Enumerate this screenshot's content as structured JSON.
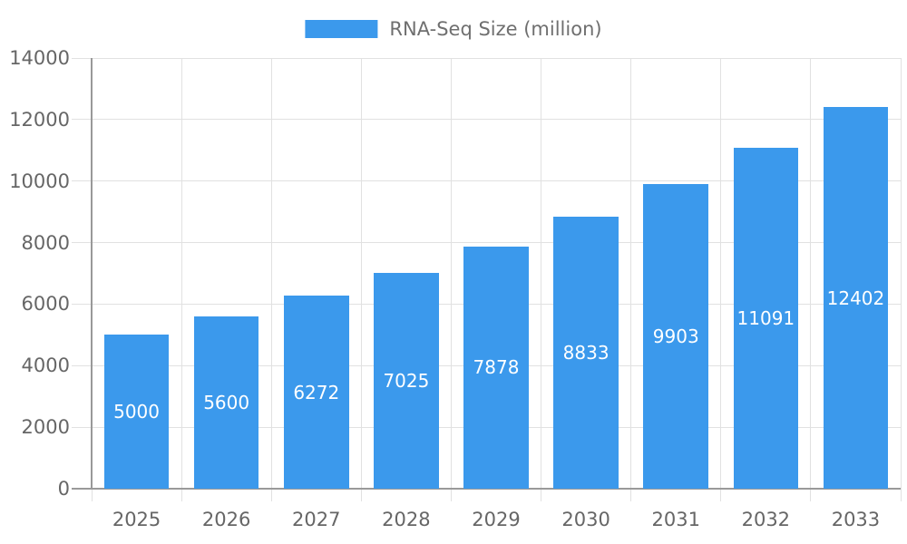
{
  "chart_data": {
    "type": "bar",
    "categories": [
      "2025",
      "2026",
      "2027",
      "2028",
      "2029",
      "2030",
      "2031",
      "2032",
      "2033"
    ],
    "values": [
      5000,
      5600,
      6272,
      7025,
      7878,
      8833,
      9903,
      11091,
      12402
    ],
    "series_name": "RNA-Seq Size (million)",
    "title": "",
    "xlabel": "",
    "ylabel": "",
    "ylim": [
      0,
      14000
    ],
    "yticks": [
      0,
      2000,
      4000,
      6000,
      8000,
      10000,
      12000,
      14000
    ],
    "grid": true,
    "legend_position": "top-center",
    "value_labels": "inside-center",
    "colors": {
      "bar": "#3B99EC",
      "value_label": "#FFFFFF",
      "axis_text": "#666666",
      "legend_text": "#6F6F6F",
      "gridline": "#E1E1E1",
      "axis_line": "#999999"
    }
  }
}
